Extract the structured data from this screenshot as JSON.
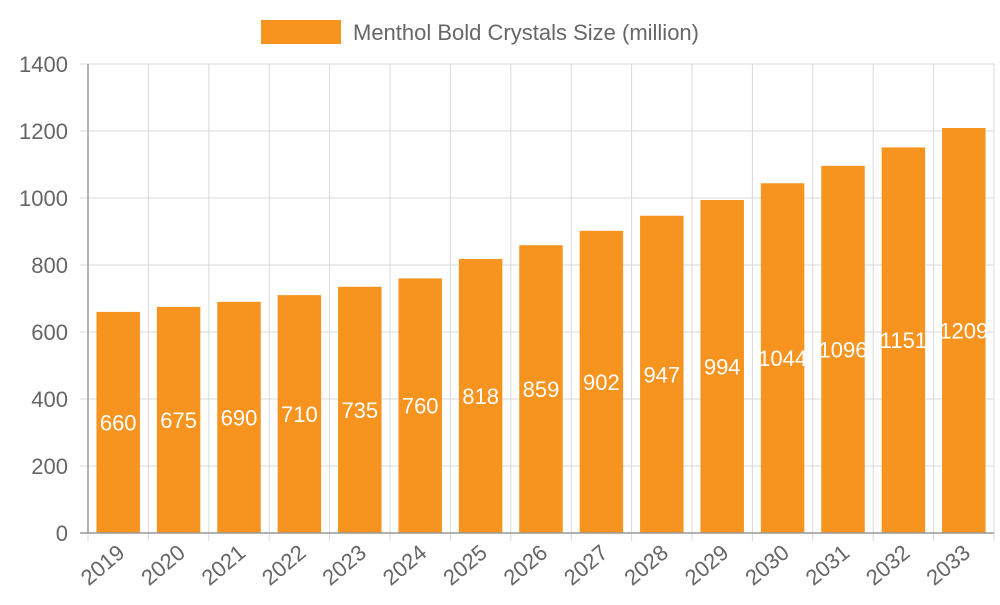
{
  "chart_data": {
    "type": "bar",
    "title": "",
    "xlabel": "",
    "ylabel": "",
    "categories": [
      "2019",
      "2020",
      "2021",
      "2022",
      "2023",
      "2024",
      "2025",
      "2026",
      "2027",
      "2028",
      "2029",
      "2030",
      "2031",
      "2032",
      "2033"
    ],
    "series": [
      {
        "name": "Menthol Bold Crystals Size (million)",
        "color": "#f7941f",
        "values": [
          660,
          675,
          690,
          710,
          735,
          760,
          818,
          859,
          902,
          947,
          994,
          1044,
          1096,
          1151,
          1209
        ]
      }
    ],
    "ylim": [
      0,
      1400
    ],
    "yticks": [
      0,
      200,
      400,
      600,
      800,
      1000,
      1200,
      1400
    ],
    "grid": true,
    "legend": "top-center",
    "data_labels": true
  }
}
